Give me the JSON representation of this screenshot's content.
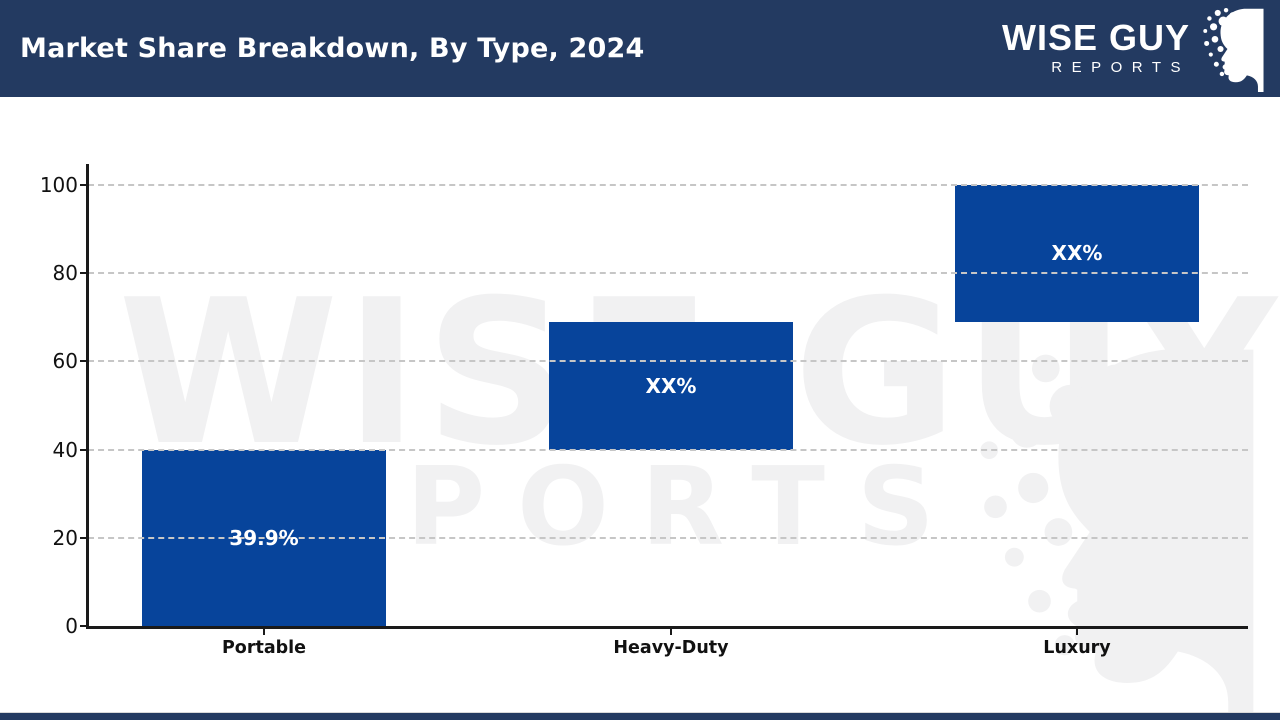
{
  "header": {
    "title": "Market Share Breakdown, By Type, 2024",
    "logo": {
      "line1": "WISE GUY",
      "line2": "REPORTS"
    }
  },
  "watermark": {
    "line1": "WISE GUY",
    "line2": "REPORTS"
  },
  "chart_data": {
    "type": "bar",
    "subtype": "stacked-waterfall",
    "title": "Market Share Breakdown, By Type, 2024",
    "categories": [
      "Portable",
      "Heavy-Duty",
      "Luxury"
    ],
    "segments": [
      {
        "category": "Portable",
        "start": 0,
        "end": 40,
        "label": "39.9%"
      },
      {
        "category": "Heavy-Duty",
        "start": 40,
        "end": 69,
        "label": "XX%"
      },
      {
        "category": "Luxury",
        "start": 69,
        "end": 100,
        "label": "XX%"
      }
    ],
    "yticks": [
      0,
      20,
      40,
      60,
      80,
      100
    ],
    "ylim": [
      0,
      105
    ],
    "xlabel": "",
    "ylabel": "",
    "grid": "horizontal-dashed",
    "legend": "none",
    "bar_color": "#07449b",
    "label_color": "#ffffff"
  }
}
